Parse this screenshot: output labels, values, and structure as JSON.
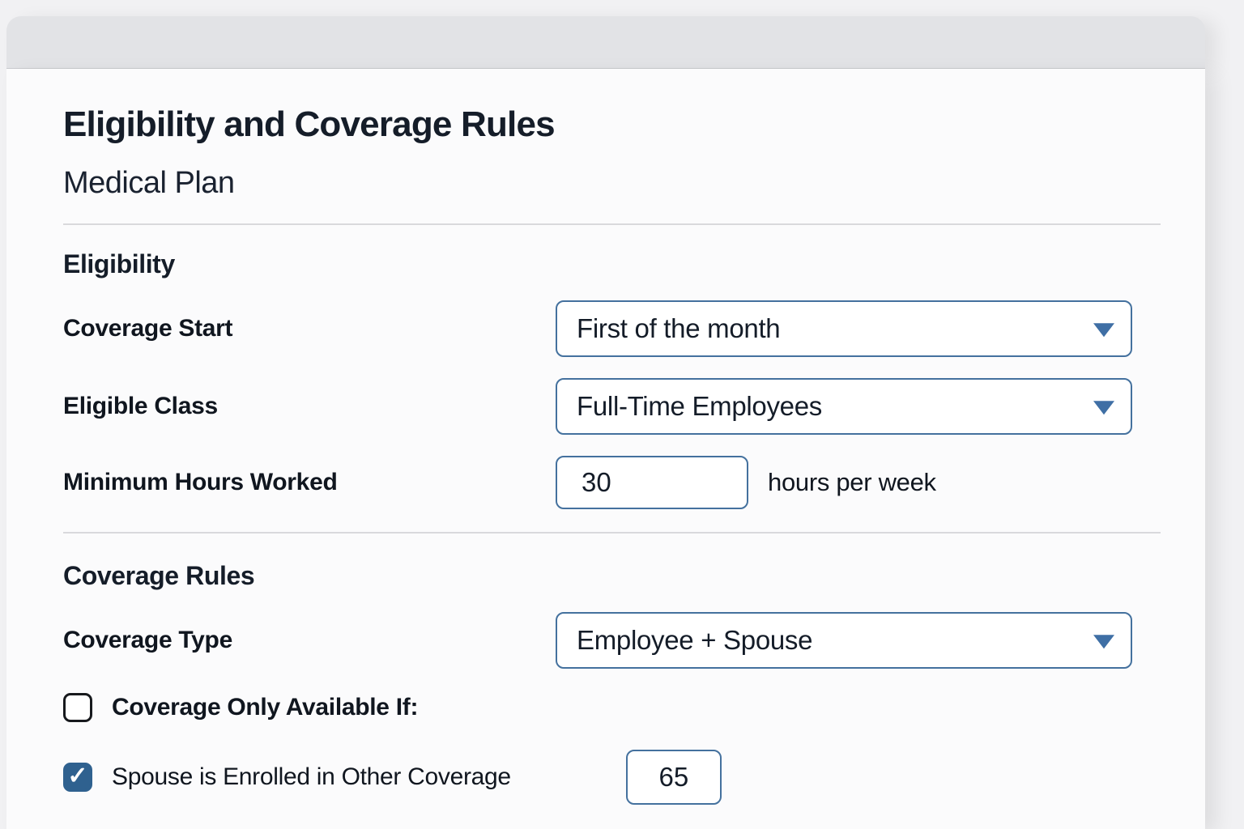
{
  "window": {
    "title": "Eligibility and Coverage Rules",
    "subtitle": "Medical Plan"
  },
  "colors": {
    "page_bg": "#f1f1f3",
    "titlebar_bg": "#e2e3e6",
    "card_bg": "#fbfbfc",
    "text": "#151d29",
    "control_border": "#44719e",
    "caret": "#3f6fa5",
    "checkbox_checked": "#2f618f",
    "divider": "#d9d9dc"
  },
  "icons": {
    "dropdown_caret": "caret-down",
    "check": "✓"
  },
  "eligibility": {
    "section_title": "Eligibility",
    "coverage_start": {
      "label": "Coverage Start",
      "value": "First of the month"
    },
    "eligible_class": {
      "label": "Eligible Class",
      "value": "Full-Time Employees"
    },
    "minimum_hours": {
      "label": "Minimum Hours Worked",
      "value": "30",
      "suffix": "hours per week"
    }
  },
  "coverage_rules": {
    "section_title": "Coverage Rules",
    "coverage_type": {
      "label": "Coverage Type",
      "value": "Employee + Spouse"
    },
    "checkboxes": [
      {
        "label": "Coverage Only Available If:",
        "checked": false
      },
      {
        "label": "Spouse is Enrolled in Other Coverage",
        "checked": true,
        "value": "65"
      }
    ]
  }
}
